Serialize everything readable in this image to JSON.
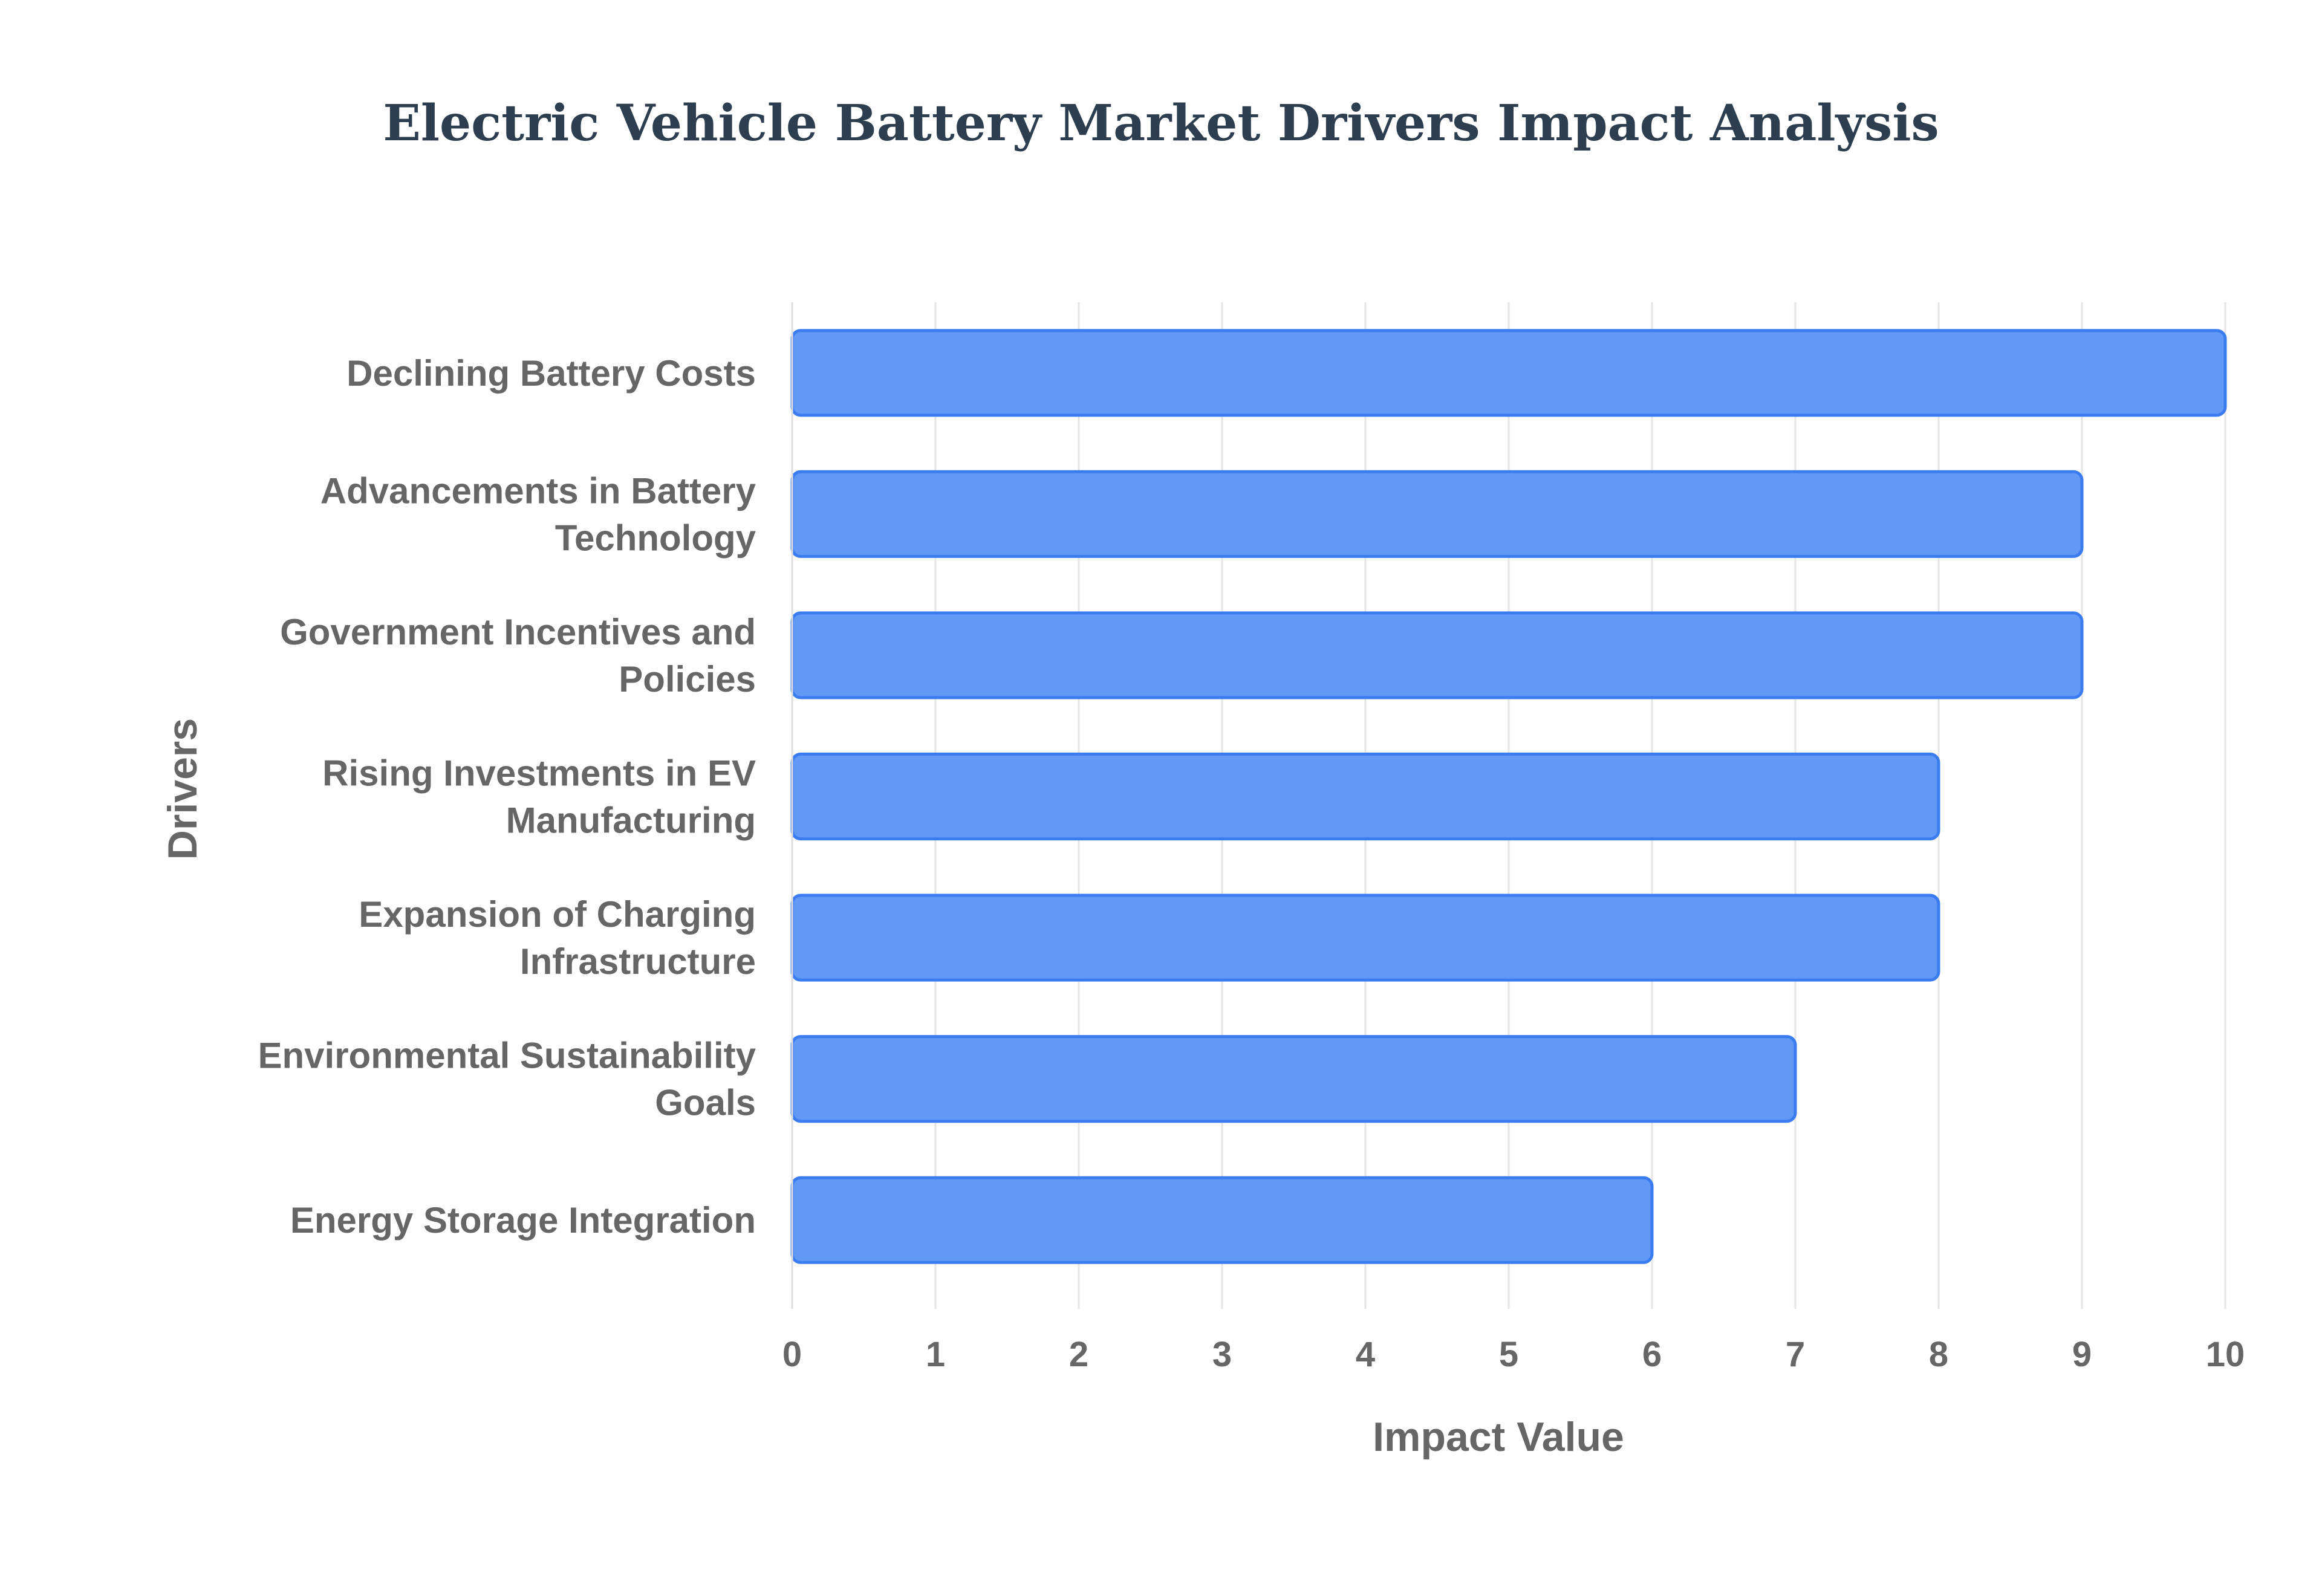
{
  "chart_data": {
    "type": "bar",
    "orientation": "horizontal",
    "title": "Electric Vehicle Battery Market Drivers Impact Analysis",
    "xlabel": "Impact Value",
    "ylabel": "Drivers",
    "xlim": [
      0,
      10
    ],
    "xticks": [
      0,
      1,
      2,
      3,
      4,
      5,
      6,
      7,
      8,
      9,
      10
    ],
    "grid": true,
    "legend": "none",
    "bar_color": "#6199f5",
    "bar_border_color": "#3b7cf0",
    "categories": [
      [
        "Declining Battery Costs"
      ],
      [
        "Advancements in Battery",
        "Technology"
      ],
      [
        "Government Incentives and",
        "Policies"
      ],
      [
        "Rising Investments in EV",
        "Manufacturing"
      ],
      [
        "Expansion of Charging",
        "Infrastructure"
      ],
      [
        "Environmental Sustainability",
        "Goals"
      ],
      [
        "Energy Storage Integration"
      ]
    ],
    "values": [
      10,
      9,
      9,
      8,
      8,
      7,
      6
    ]
  }
}
